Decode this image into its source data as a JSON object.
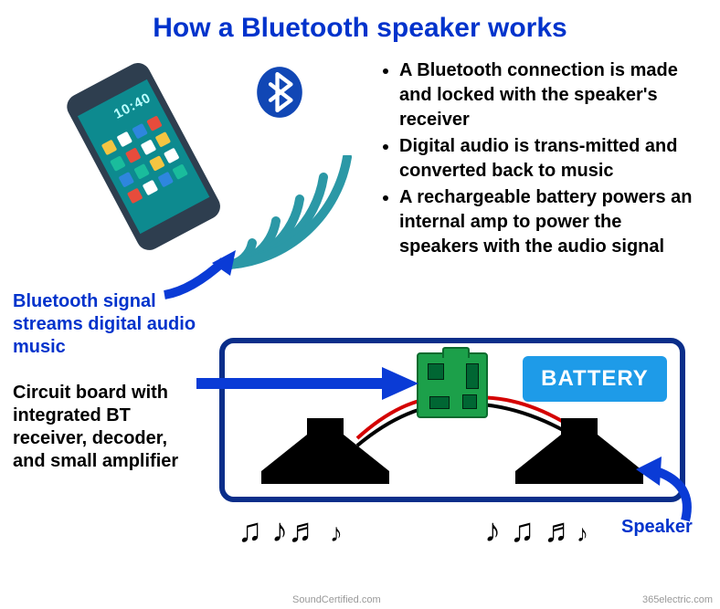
{
  "title": "How a Bluetooth speaker works",
  "title_color": "#0033cc",
  "bullet_color": "#000000",
  "bullets": [
    "A Bluetooth connection is made and locked with the speaker's receiver",
    "Digital audio is trans-mitted and converted back to music",
    "A rechargeable battery powers an internal amp to power the speakers with the audio signal"
  ],
  "signal_caption": "Bluetooth signal streams digital audio music",
  "signal_caption_color": "#0033cc",
  "circuit_caption": "Circuit board with integrated BT receiver, decoder, and small amplifier",
  "speaker_caption": "Speaker",
  "speaker_caption_color": "#0033cc",
  "battery_label": "BATTERY",
  "watermark_left": "SoundCertified.com",
  "watermark_right": "365electric.com",
  "colors": {
    "arrow": "#0a3bd6",
    "box_border": "#0a2e8a",
    "battery_bg": "#1e9be8",
    "wave": "#2b98a6",
    "phone_body": "#2e3e4f",
    "phone_screen": "#0d8a8f",
    "pcb": "#1ca04a",
    "bt_logo": "#1147b5",
    "wire_red": "#d40000",
    "wire_black": "#000000",
    "speaker_fill": "#000000"
  },
  "phone_apps": [
    "#f4c542",
    "#ffffff",
    "#2e86de",
    "#e74c3c",
    "#1abc9c",
    "#e74c3c",
    "#ffffff",
    "#f4c542",
    "#2e86de",
    "#1abc9c",
    "#f4c542",
    "#ffffff",
    "#e74c3c",
    "#ffffff",
    "#2e86de",
    "#1abc9c"
  ],
  "phone_clock": "10:40"
}
